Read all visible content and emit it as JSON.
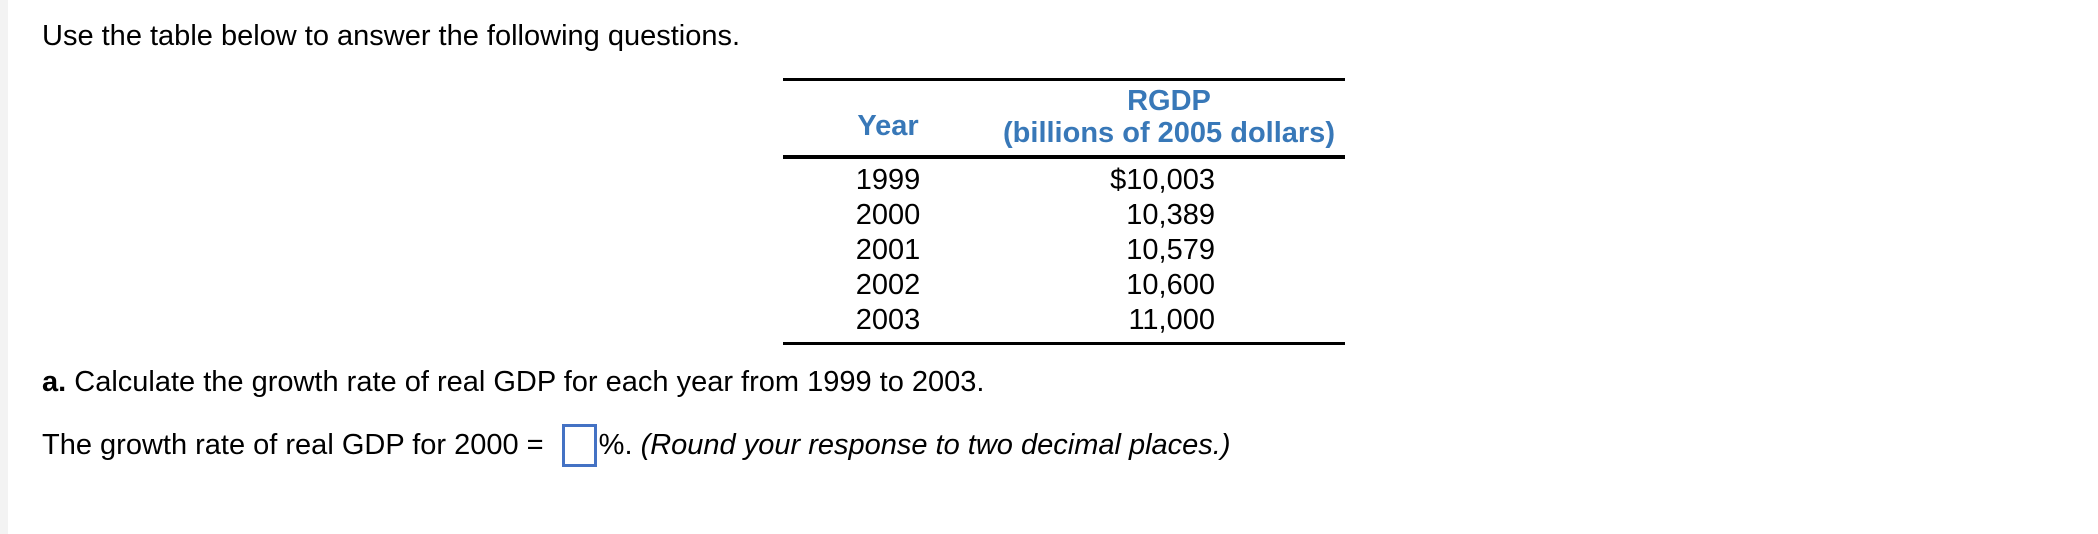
{
  "colors": {
    "table_header_blue": "#3878b8",
    "input_border_blue": "#4472c4",
    "text_color": "#000000",
    "page_background": "#ffffff"
  },
  "instruction": "Use the table below to answer the following questions.",
  "table": {
    "headers": {
      "year": "Year",
      "rgdp_line1": "RGDP",
      "rgdp_line2": "(billions of 2005 dollars)"
    },
    "rows": [
      {
        "year": "1999",
        "rgdp": "$10,003"
      },
      {
        "year": "2000",
        "rgdp": "10,389"
      },
      {
        "year": "2001",
        "rgdp": "10,579"
      },
      {
        "year": "2002",
        "rgdp": "10,600"
      },
      {
        "year": "2003",
        "rgdp": "11,000"
      }
    ]
  },
  "question_a": {
    "label": "a.",
    "text": " Calculate the growth rate of real GDP for each year from 1999 to 2003."
  },
  "answer_line": {
    "prefix": "The growth rate of real GDP for 2000 = ",
    "input_value": "",
    "percent_suffix": "%. ",
    "note": "(Round your response to two decimal places.)"
  }
}
